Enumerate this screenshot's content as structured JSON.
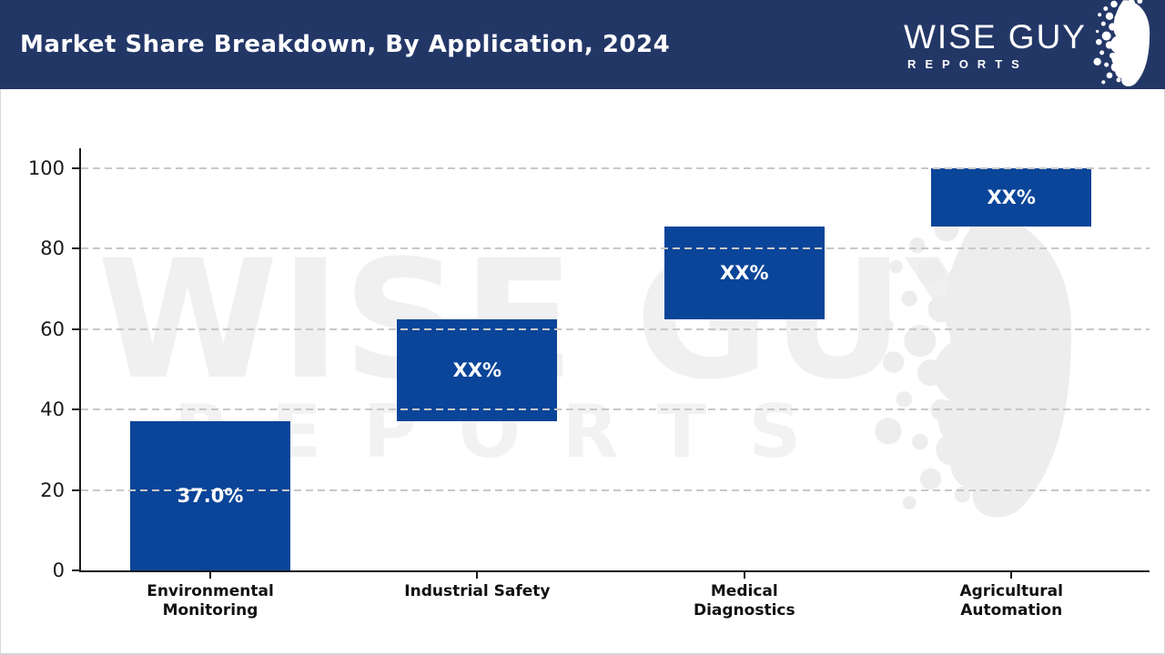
{
  "header": {
    "title": "Market Share Breakdown, By Application, 2024",
    "logo": {
      "name": "WISE GUY",
      "sub": "REPORTS"
    }
  },
  "watermark": {
    "name": "WISE GUY",
    "sub": "REPORTS"
  },
  "chart_data": {
    "type": "bar",
    "subtype": "waterfall",
    "title": "Market Share Breakdown, By Application, 2024",
    "categories": [
      "Environmental Monitoring",
      "Industrial Safety",
      "Medical Diagnostics",
      "Agricultural Automation"
    ],
    "category_label_lines": [
      [
        "Environmental",
        "Monitoring"
      ],
      [
        "Industrial Safety"
      ],
      [
        "Medical",
        "Diagnostics"
      ],
      [
        "Agricultural",
        "Automation"
      ]
    ],
    "segments": [
      {
        "category": "Environmental Monitoring",
        "start": 0,
        "end": 37.0,
        "label": "37.0%"
      },
      {
        "category": "Industrial Safety",
        "start": 37.0,
        "end": 62.5,
        "label": "XX%"
      },
      {
        "category": "Medical Diagnostics",
        "start": 62.5,
        "end": 85.5,
        "label": "XX%"
      },
      {
        "category": "Agricultural Automation",
        "start": 85.5,
        "end": 100.0,
        "label": "XX%"
      }
    ],
    "xlabel": "",
    "ylabel": "",
    "ylim": [
      0,
      105
    ],
    "yticks": [
      0,
      20,
      40,
      60,
      80,
      100
    ],
    "grid": {
      "axis": "y",
      "style": "dashed",
      "color": "#c8c8c8"
    },
    "legend": null,
    "bar_color": "#0a4599",
    "bar_label_color": "#ffffff",
    "header_color": "#233767"
  }
}
